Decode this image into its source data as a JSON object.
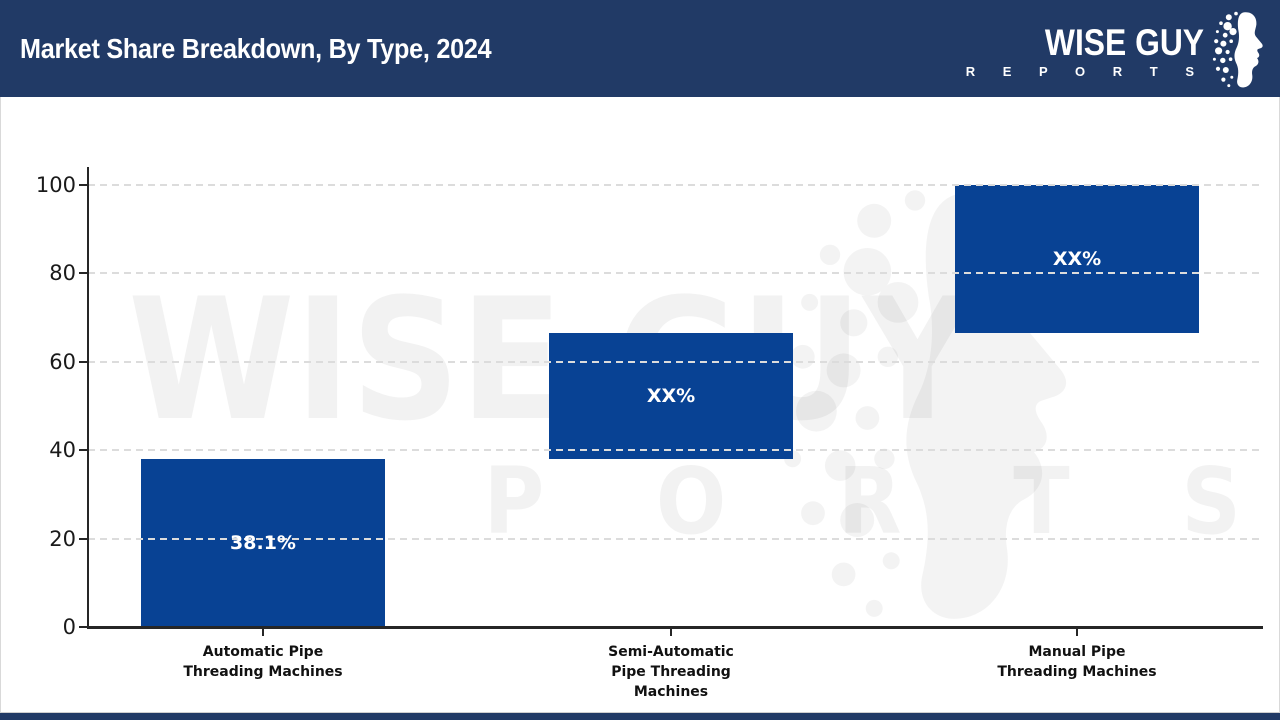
{
  "header": {
    "title": "Market Share Breakdown, By Type, 2024",
    "logo_line1": "WISE GUY",
    "logo_line2": "R E P O R T S"
  },
  "watermark": {
    "line1": "WISE GUY",
    "line2": "R E P O R T S"
  },
  "chart_data": {
    "type": "bar",
    "subtype": "waterfall",
    "title": "Market Share Breakdown, By Type, 2024",
    "categories": [
      [
        "Automatic Pipe",
        "Threading Machines"
      ],
      [
        "Semi-Automatic",
        "Pipe Threading",
        "Machines"
      ],
      [
        "Manual Pipe",
        "Threading Machines"
      ]
    ],
    "segments": [
      {
        "start": 0,
        "end": 38.1,
        "label": "38.1%"
      },
      {
        "start": 38.1,
        "end": 66.5,
        "label": "XX%"
      },
      {
        "start": 66.5,
        "end": 100,
        "label": "XX%"
      }
    ],
    "yticks": [
      0,
      20,
      40,
      60,
      80,
      100
    ],
    "ylim": [
      0,
      104.5
    ],
    "xlabel": "",
    "ylabel": "",
    "legend": "none",
    "grid": {
      "axis": "y",
      "style": "dashed",
      "above_bars": true
    }
  },
  "colors": {
    "header_bg": "#213A66",
    "footer_bg": "#213A66",
    "bar": "#084294",
    "grid": "#dcdcdc",
    "axis": "#262626",
    "tick_text": "#1a1a1a",
    "bar_label_text": "#ffffff"
  }
}
